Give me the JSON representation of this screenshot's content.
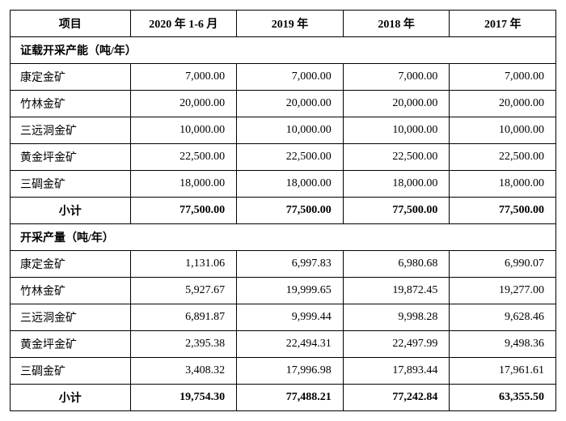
{
  "table": {
    "headers": [
      "项目",
      "2020 年 1-6 月",
      "2019 年",
      "2018 年",
      "2017 年"
    ],
    "sections": [
      {
        "title": "证载开采产能（吨/年）",
        "rows": [
          {
            "label": "康定金矿",
            "values": [
              "7,000.00",
              "7,000.00",
              "7,000.00",
              "7,000.00"
            ]
          },
          {
            "label": "竹林金矿",
            "values": [
              "20,000.00",
              "20,000.00",
              "20,000.00",
              "20,000.00"
            ]
          },
          {
            "label": "三远洞金矿",
            "values": [
              "10,000.00",
              "10,000.00",
              "10,000.00",
              "10,000.00"
            ]
          },
          {
            "label": "黄金坪金矿",
            "values": [
              "22,500.00",
              "22,500.00",
              "22,500.00",
              "22,500.00"
            ]
          },
          {
            "label": "三碉金矿",
            "values": [
              "18,000.00",
              "18,000.00",
              "18,000.00",
              "18,000.00"
            ]
          }
        ],
        "subtotal": {
          "label": "小计",
          "values": [
            "77,500.00",
            "77,500.00",
            "77,500.00",
            "77,500.00"
          ]
        }
      },
      {
        "title": "开采产量（吨/年）",
        "rows": [
          {
            "label": "康定金矿",
            "values": [
              "1,131.06",
              "6,997.83",
              "6,980.68",
              "6,990.07"
            ]
          },
          {
            "label": "竹林金矿",
            "values": [
              "5,927.67",
              "19,999.65",
              "19,872.45",
              "19,277.00"
            ]
          },
          {
            "label": "三远洞金矿",
            "values": [
              "6,891.87",
              "9,999.44",
              "9,998.28",
              "9,628.46"
            ]
          },
          {
            "label": "黄金坪金矿",
            "values": [
              "2,395.38",
              "22,494.31",
              "22,497.99",
              "9,498.36"
            ]
          },
          {
            "label": "三碉金矿",
            "values": [
              "3,408.32",
              "17,996.98",
              "17,893.44",
              "17,961.61"
            ]
          }
        ],
        "subtotal": {
          "label": "小计",
          "values": [
            "19,754.30",
            "77,488.21",
            "77,242.84",
            "63,355.50"
          ]
        }
      }
    ],
    "styling": {
      "font_family": "SimSun",
      "font_size_pt": 14,
      "border_color": "#000000",
      "background_color": "#ffffff",
      "text_color": "#000000",
      "header_align": "center",
      "label_align": "left",
      "number_align": "right",
      "subtotal_bold": true
    }
  }
}
